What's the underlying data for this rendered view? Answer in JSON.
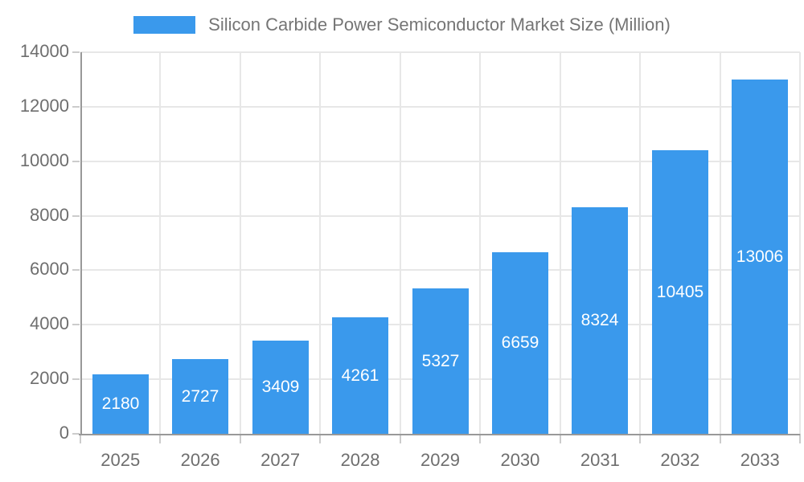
{
  "legend": {
    "label": "Silicon Carbide Power Semiconductor Market Size (Million)"
  },
  "colors": {
    "bar": "#3A99EC",
    "bar_label": "#ffffff",
    "axis_text": "#6e6e6e",
    "legend_text": "#757575",
    "gridline": "#e7e7e7",
    "tick": "#cccccc",
    "axis_line": "#999999",
    "background": "#ffffff"
  },
  "chart_data": {
    "type": "bar",
    "title": "Silicon Carbide Power Semiconductor Market Size (Million)",
    "categories": [
      "2025",
      "2026",
      "2027",
      "2028",
      "2029",
      "2030",
      "2031",
      "2032",
      "2033"
    ],
    "values": [
      2180,
      2727,
      3409,
      4261,
      5327,
      6659,
      8324,
      10405,
      13006
    ],
    "series": [
      {
        "name": "Silicon Carbide Power Semiconductor Market Size (Million)",
        "values": [
          2180,
          2727,
          3409,
          4261,
          5327,
          6659,
          8324,
          10405,
          13006
        ]
      }
    ],
    "xlabel": "",
    "ylabel": "",
    "ylim": [
      0,
      14000
    ],
    "y_ticks": [
      0,
      2000,
      4000,
      6000,
      8000,
      10000,
      12000,
      14000
    ],
    "grid": true,
    "value_labels": "inside-center",
    "legend_position": "top-center"
  }
}
